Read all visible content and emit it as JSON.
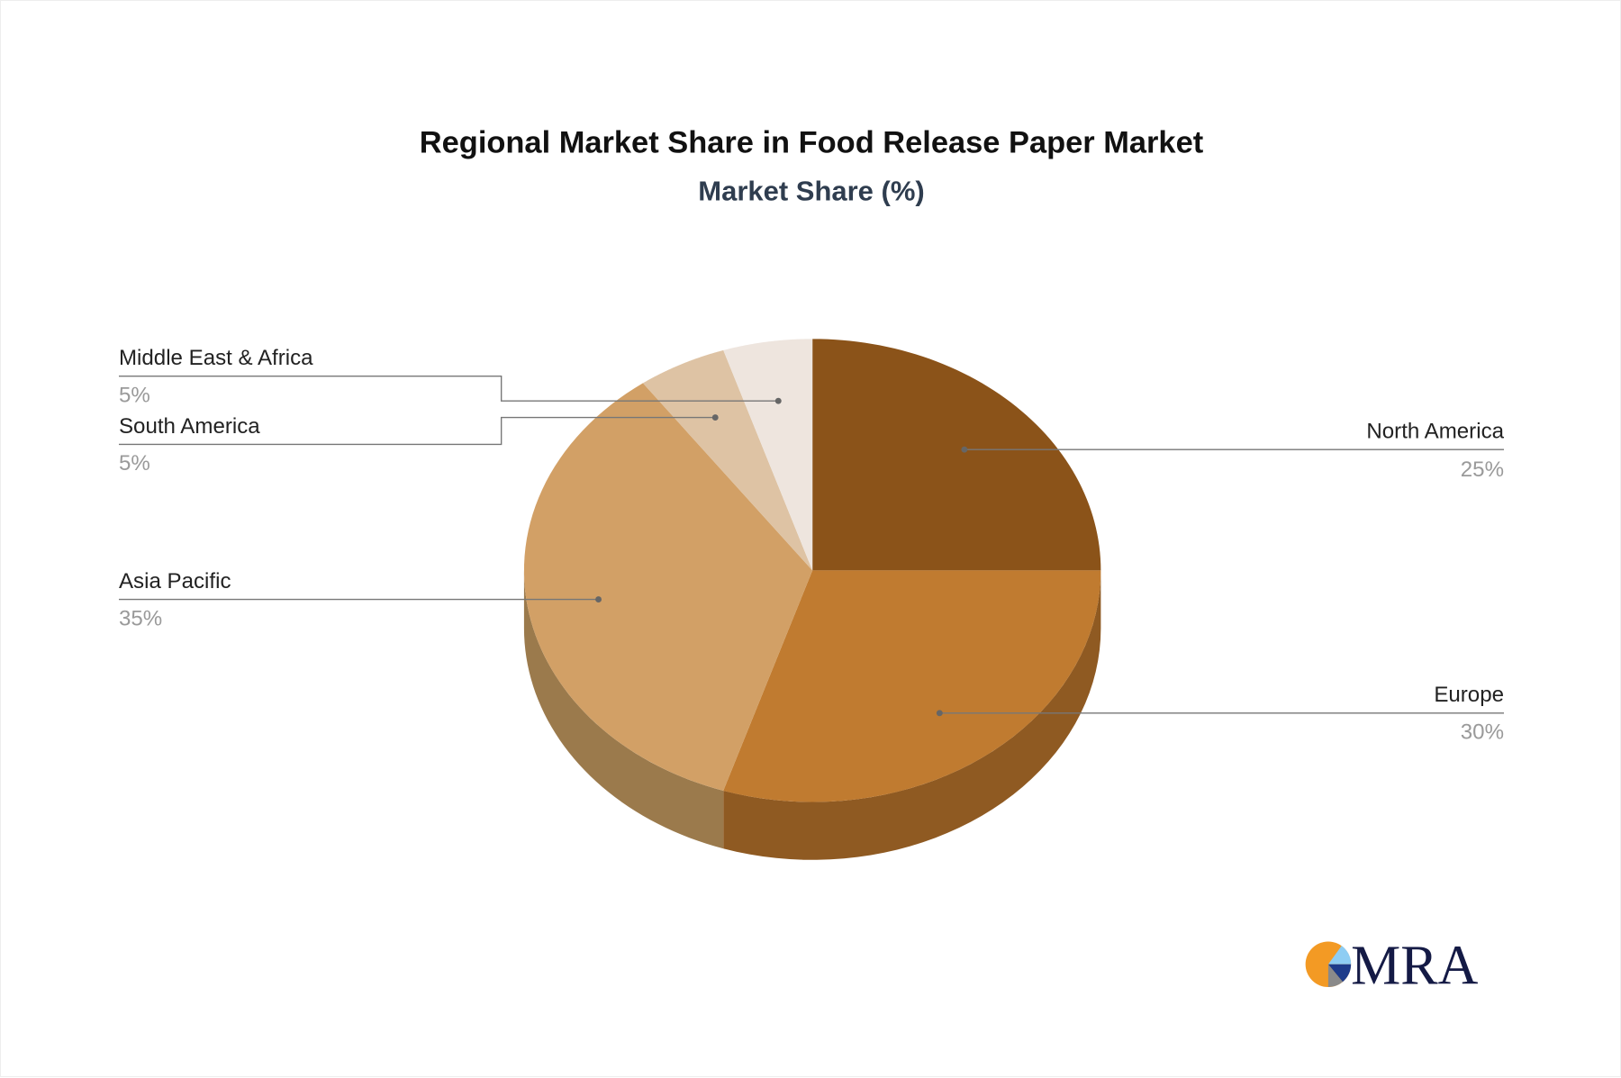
{
  "chart_data": {
    "type": "pie",
    "title": "Regional Market Share in Food Release Paper Market",
    "subtitle": "Market Share (%)",
    "categories": [
      "North America",
      "Europe",
      "Asia Pacific",
      "South America",
      "Middle East & Africa"
    ],
    "values": [
      25,
      30,
      35,
      5,
      5
    ],
    "value_labels": [
      "25%",
      "30%",
      "35%",
      "5%",
      "5%"
    ],
    "colors": [
      "#8B5319",
      "#C07B30",
      "#D2A066",
      "#DEC3A4",
      "#EEE5DE"
    ],
    "side_colors": [
      "#6a3f12",
      "#8F5A22",
      "#9B7A4C",
      "#a89279",
      "#b3aca6"
    ],
    "style": "3d",
    "legend": "none"
  },
  "logo": {
    "text": "MRA"
  }
}
